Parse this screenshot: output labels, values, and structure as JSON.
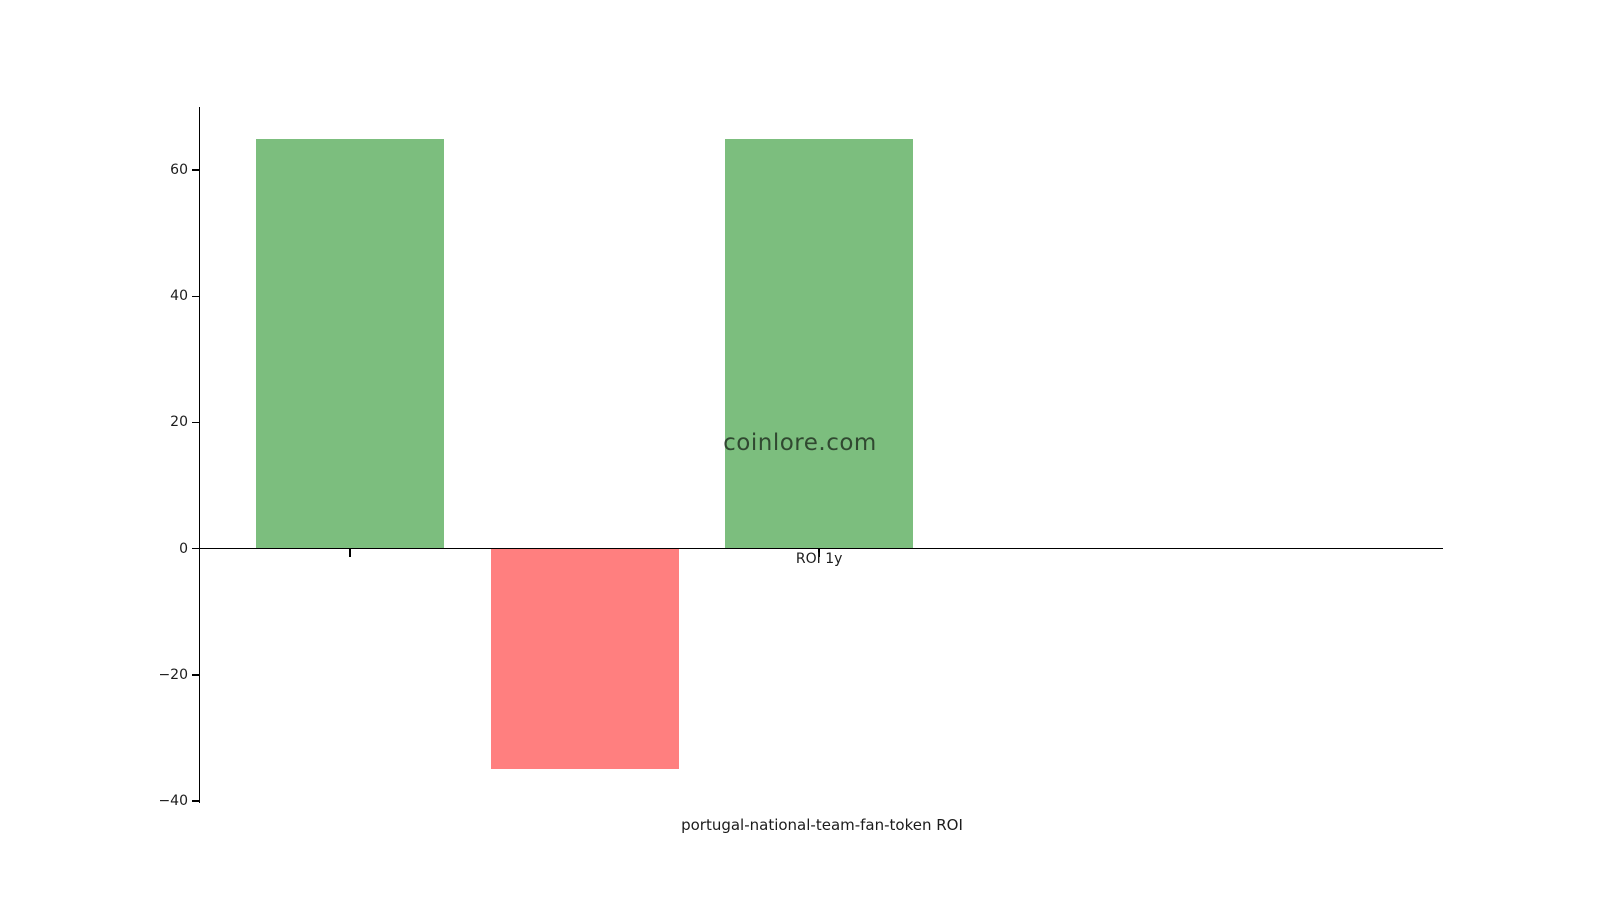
{
  "watermark": {
    "text": "coinlore.com",
    "color": "rgba(15, 22, 15, 0.70)"
  },
  "chart_data": {
    "type": "bar",
    "title": "portugal-national-team-fan-token ROI",
    "xlabel": "portugal-national-team-fan-token ROI",
    "ylabel": "",
    "categories": [
      "",
      "",
      "ROI 1y"
    ],
    "values": [
      65,
      -35,
      65
    ],
    "bar_colors": [
      "#7cbe7e",
      "#ff7f7f",
      "#7cbe7e"
    ],
    "positive_color": "#7cbe7e",
    "negative_color": "#ff7f7f",
    "ylim": [
      -40,
      70
    ],
    "yticks": [
      {
        "value": 60,
        "label": "60"
      },
      {
        "value": 40,
        "label": "40"
      },
      {
        "value": 20,
        "label": "20"
      },
      {
        "value": 0,
        "label": "0"
      },
      {
        "value": -20,
        "label": "−20"
      },
      {
        "value": -40,
        "label": "−40"
      }
    ],
    "xticks": [
      {
        "index": 0,
        "label": ""
      },
      {
        "index": 2,
        "label": "ROI 1y"
      }
    ],
    "grid": false,
    "legend": null,
    "axis_color": "#000000",
    "text_color": "#1c1c1c"
  }
}
